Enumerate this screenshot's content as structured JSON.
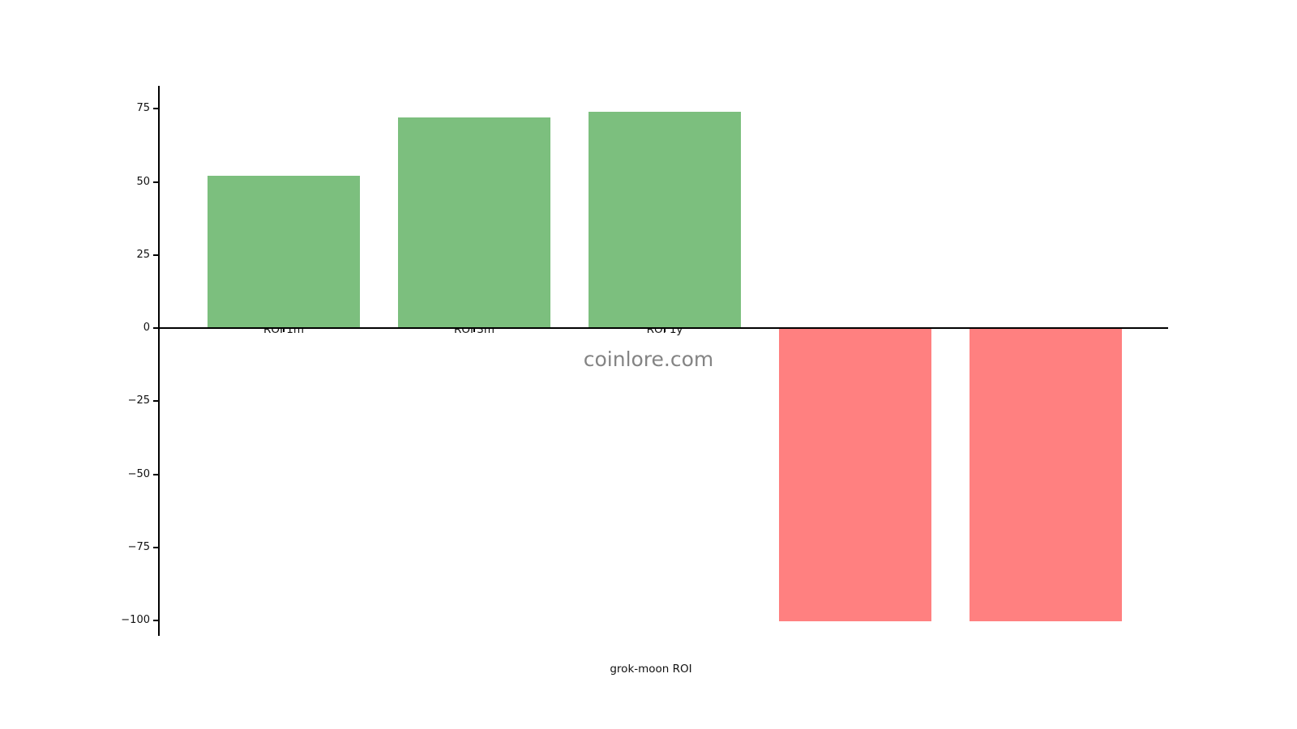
{
  "chart_data": {
    "type": "bar",
    "title": "",
    "categories": [
      "ROI 1m",
      "ROI 3m",
      "ROI 1y",
      "",
      ""
    ],
    "values": [
      52,
      72,
      74,
      -100,
      -100
    ],
    "xlabel": "grok-moon ROI",
    "ylabel": "",
    "yticks": [
      75,
      50,
      25,
      0,
      -25,
      -50,
      -75,
      -100
    ],
    "ytick_labels": [
      "75",
      "50",
      "25",
      "0",
      "−25",
      "−50",
      "−75",
      "−100"
    ],
    "ylim": [
      -105,
      83
    ],
    "grid": false,
    "legend": "none",
    "bar_colors": {
      "positive": "#7cbf7e",
      "negative": "#ff8080"
    },
    "axis_color": "#000000",
    "watermark": "coinlore.com",
    "watermark_color": "#848484"
  }
}
